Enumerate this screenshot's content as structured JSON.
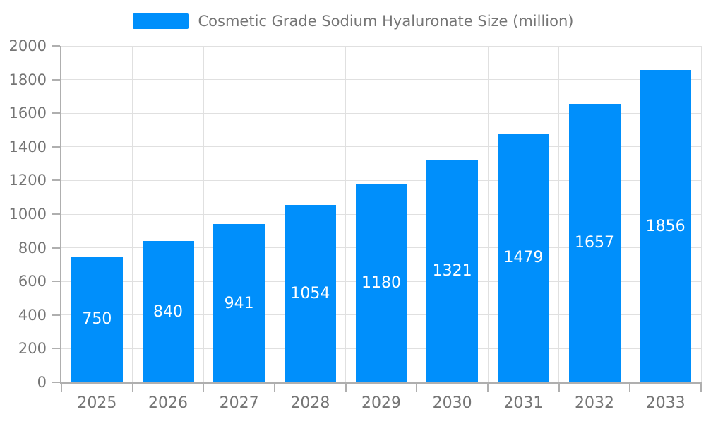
{
  "chart_data": {
    "type": "bar",
    "title": "Cosmetic Grade Sodium Hyaluronate Size (million)",
    "legend": {
      "position": "top",
      "label": "Cosmetic Grade Sodium Hyaluronate Size (million)"
    },
    "categories": [
      "2025",
      "2026",
      "2027",
      "2028",
      "2029",
      "2030",
      "2031",
      "2032",
      "2033"
    ],
    "series": [
      {
        "name": "Cosmetic Grade Sodium Hyaluronate Size (million)",
        "values": [
          750,
          840,
          941,
          1054,
          1180,
          1321,
          1479,
          1657,
          1856
        ]
      }
    ],
    "xlabel": "",
    "ylabel": "",
    "ylim": [
      0,
      2000
    ],
    "yticks": [
      0,
      200,
      400,
      600,
      800,
      1000,
      1200,
      1400,
      1600,
      1800,
      2000
    ],
    "grid": true,
    "colors": {
      "bar": "#008FFB",
      "bar_label": "#FFFFFF",
      "grid_line": "#E0E0E0",
      "axis_line": "#AFAFAF",
      "tick_label": "#757575",
      "legend_text": "#757575",
      "background": "#FFFFFF"
    }
  }
}
